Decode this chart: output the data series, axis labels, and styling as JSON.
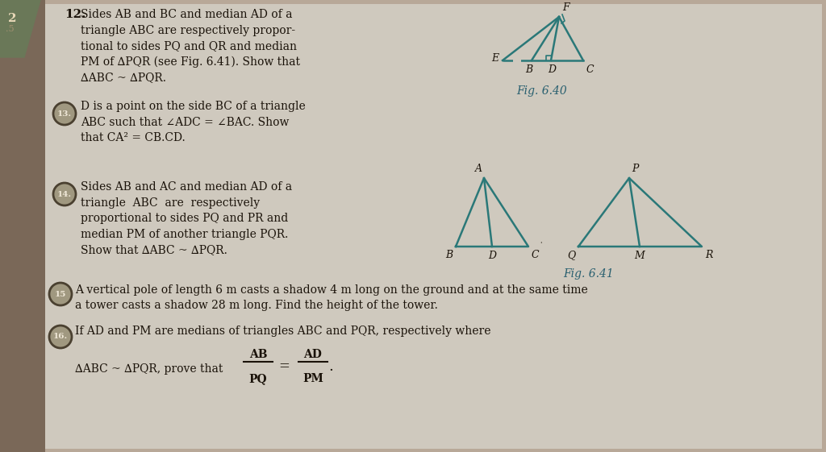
{
  "bg_color": "#b8a898",
  "page_color": "#cfc9be",
  "left_strip_color": "#7a6858",
  "teal": "#2a7878",
  "dark": "#1a1209",
  "fig_label_color": "#2a6070",
  "circle_fill": "#a09880",
  "circle_edge": "#4a4030",
  "q12_num": "12.",
  "q12_text": "Sides AB and BC and median AD of a\ntriangle ABC are respectively propor-\ntional to sides PQ and QR and median\nPM of ∆PQR (see Fig. 6.41). Show that\n∆ABC ~ ∆PQR.",
  "q13_num": "13.",
  "q13_text": "D is a point on the side BC of a triangle\nABC such that ∠ADC = ∠BAC. Show\nthat CA² = CB.CD.",
  "q14_num": "14.",
  "q14_text": "Sides AB and AC and median AD of a\ntriangle  ABC  are  respectively\nproportional to sides PQ and PR and\nmedian PM of another triangle PQR.\nShow that ∆ABC ~ ∆PQR.",
  "q15_num": "15.",
  "q15_text": "A vertical pole of length 6 m casts a shadow 4 m long on the ground and at the same time\na tower casts a shadow 28 m long. Find the height of the tower.",
  "q16_num": "16.",
  "q16_text": "If AD and PM are medians of triangles ABC and PQR, respectively where",
  "q16_prove": "∆ABC ~ ∆PQR, prove that",
  "fig640_label": "Fig. 6.40",
  "fig641_label": "Fig. 6.41"
}
